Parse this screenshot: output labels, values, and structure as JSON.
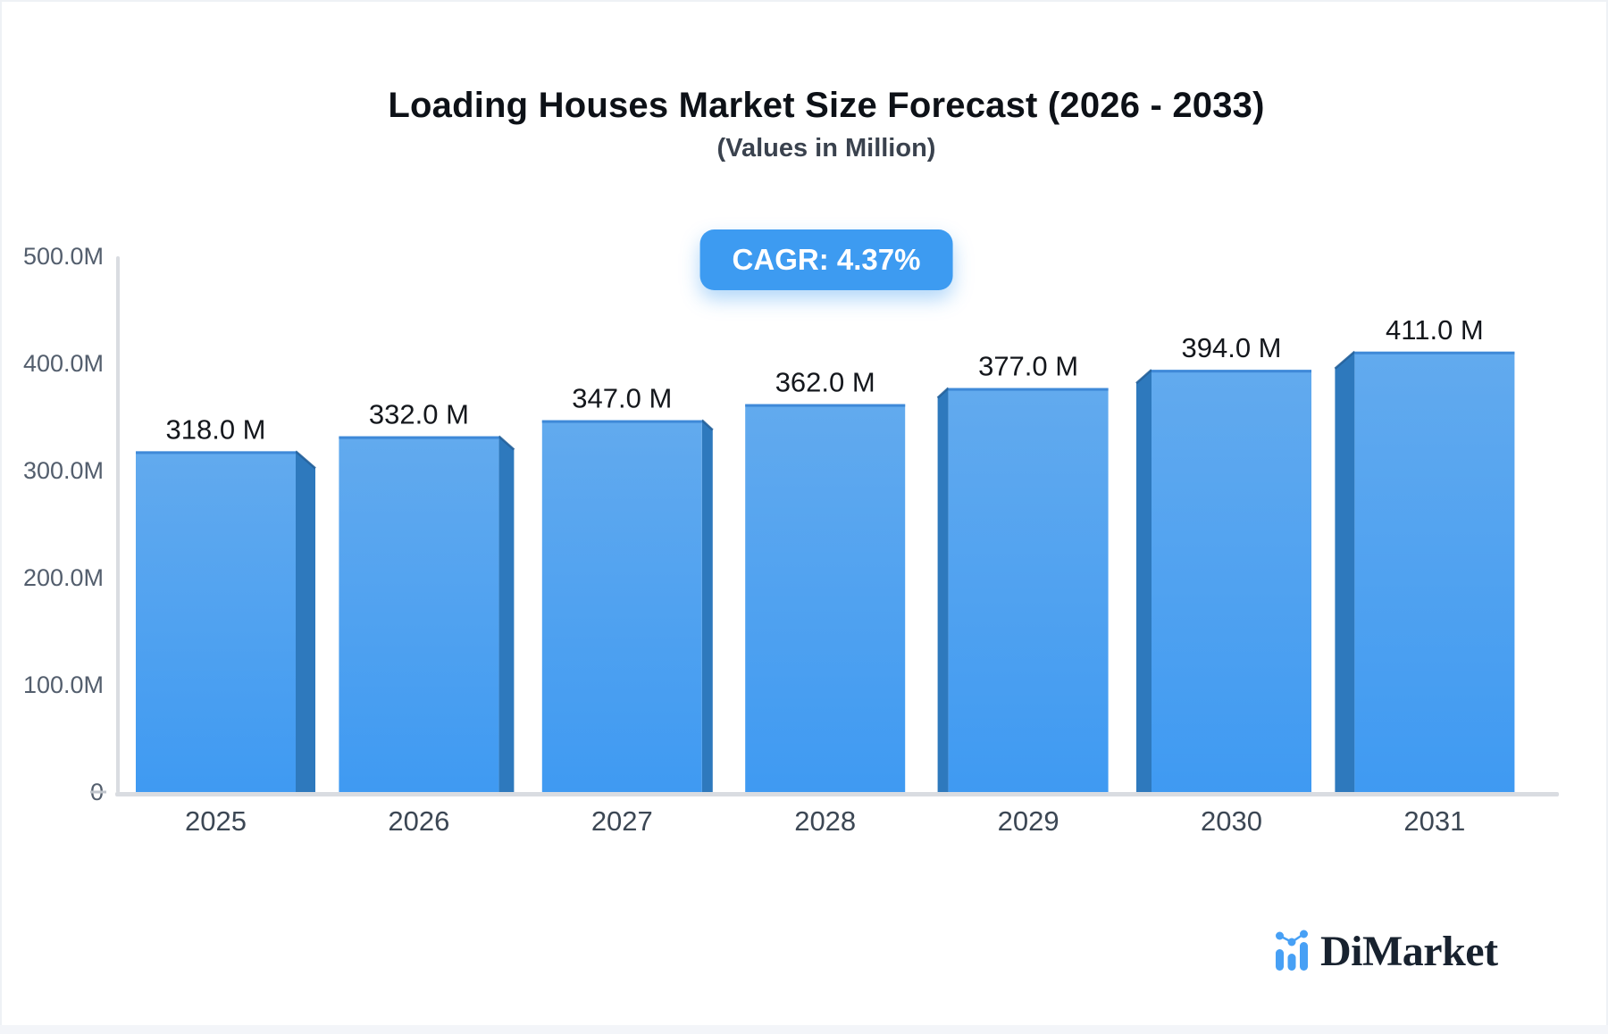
{
  "header": {
    "title": "Loading Houses Market Size Forecast (2026 - 2033)",
    "subtitle": "(Values in Million)",
    "cagr_badge": "CAGR: 4.37%"
  },
  "branding": {
    "logo_text": "DiMarket",
    "logo_icon": "mini-bar-chart-icon"
  },
  "chart_data": {
    "type": "bar",
    "title": "Loading Houses Market Size Forecast (2026 - 2033)",
    "subtitle": "(Values in Million)",
    "unit": "Million",
    "cagr_percent": 4.37,
    "categories": [
      "2025",
      "2026",
      "2027",
      "2028",
      "2029",
      "2030",
      "2031"
    ],
    "values": [
      318,
      332,
      347,
      362,
      377,
      394,
      411
    ],
    "value_labels": [
      "318.0 M",
      "332.0 M",
      "347.0 M",
      "362.0 M",
      "377.0 M",
      "394.0 M",
      "411.0 M"
    ],
    "xlabel": "",
    "ylabel": "",
    "ylim": [
      0,
      500
    ],
    "ytick_values": [
      500,
      400,
      300,
      200,
      100,
      0
    ],
    "ytick_labels": [
      "500.0M",
      "400.0M",
      "300.0M",
      "200.0M",
      "100.0M",
      "0"
    ],
    "grid": false,
    "legend": "none",
    "style": "pseudo-3d bars facing center",
    "colors": {
      "bar_top": "#62aaee",
      "bar_bottom": "#3f9af2",
      "bar_top_edge": "#3d87d6",
      "bar_side": "#2e79bd",
      "bar_side_edge": "#23609a",
      "axis": "#d9dce1",
      "tick_dash": "#c0c5cc",
      "y_label_text": "#535e6d",
      "x_label_text": "#3c4754",
      "value_label_text": "#14171c",
      "badge_bg": "#3d9bf1",
      "logo_blue": "#47a0f5",
      "logo_dark": "#18222f"
    }
  }
}
